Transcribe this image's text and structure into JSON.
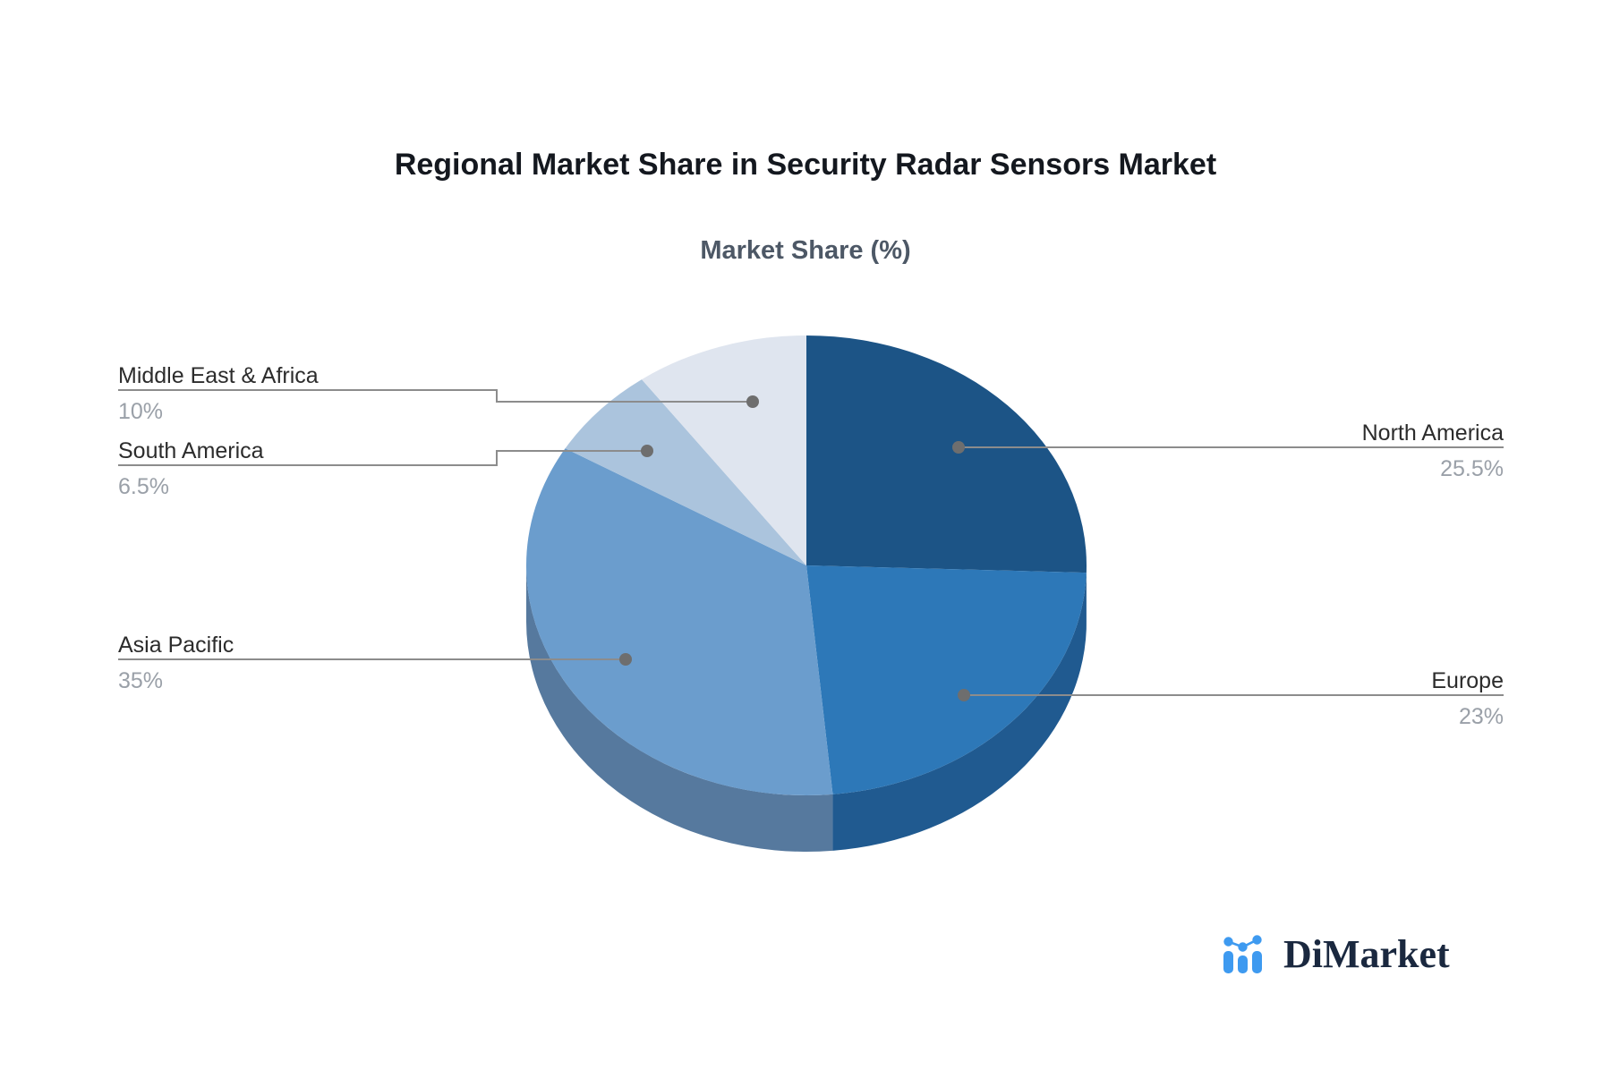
{
  "title": "Regional Market Share in Security Radar Sensors Market",
  "subtitle": "Market Share (%)",
  "logo": {
    "text": "DiMarket",
    "icon": "bar-chart-with-trend-dots-icon",
    "icon_color": "#3e9af0",
    "text_color": "#1a283f"
  },
  "chart_data": {
    "type": "pie",
    "title": "Regional Market Share in Security Radar Sensors Market",
    "subtitle": "Market Share (%)",
    "unit": "%",
    "style": "3d-depth-pie",
    "start_angle": "12-o-clock",
    "direction": "clockwise",
    "labels": [
      "North America",
      "Europe",
      "Asia Pacific",
      "South America",
      "Middle East & Africa"
    ],
    "values": [
      25.5,
      23,
      35,
      6.5,
      10
    ],
    "display_values": [
      "25.5%",
      "23%",
      "35%",
      "6.5%",
      "10%"
    ],
    "colors": [
      "#1c5486",
      "#2d78b8",
      "#6b9dcd",
      "#abc4dd",
      "#dfe5ef"
    ],
    "side_colors": [
      "#174a72",
      "#205a90",
      "#56799e",
      "#8fb0cf",
      "#c9d4e4"
    ],
    "leader_line_color": "#8c8c8c",
    "leader_dot_color": "#6e6e6e",
    "label_name_color": "#2c2c2c",
    "label_value_color": "#9aa0a8"
  }
}
